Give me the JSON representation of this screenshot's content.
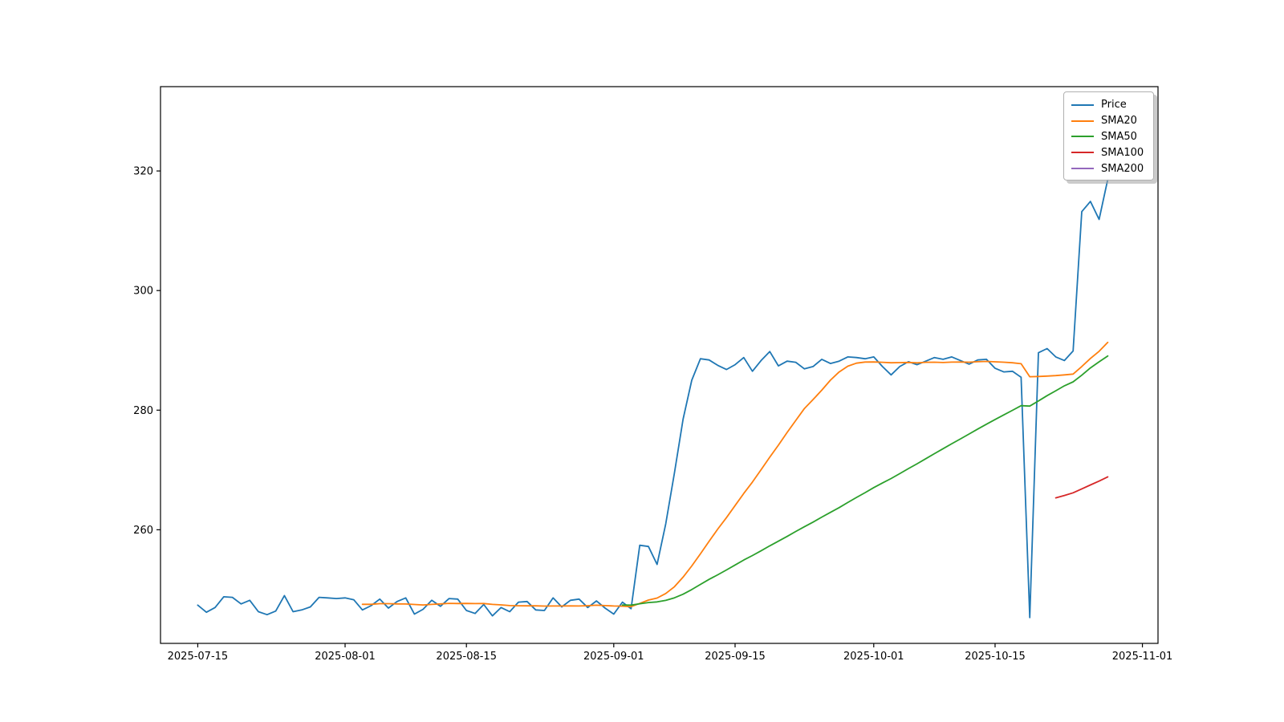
{
  "chart_data": {
    "type": "line",
    "title": "",
    "background_color": "#ffffff",
    "axis_color": "#000000",
    "tick_label_color": "#000000",
    "grid": false,
    "frequency": "daily",
    "start_date": "2025-07-15",
    "end_date": "2025-10-28",
    "x_tick_labels": [
      "2025-07-15",
      "2025-08-01",
      "2025-08-15",
      "2025-09-01",
      "2025-09-15",
      "2025-10-01",
      "2025-10-15",
      "2025-11-01"
    ],
    "y_tick_labels": [
      "260",
      "280",
      "300",
      "320"
    ],
    "y_ticks": [
      260,
      280,
      300,
      320
    ],
    "ylim": [
      241.0,
      334.1
    ],
    "xlim_days_from_start": [
      -4.3,
      110.8
    ],
    "legend": {
      "location": "upper right",
      "entries": [
        "Price",
        "SMA20",
        "SMA50",
        "SMA100",
        "SMA200"
      ]
    },
    "series": [
      {
        "name": "Price",
        "color": "#1f77b4",
        "kind": "price"
      },
      {
        "name": "SMA20",
        "color": "#ff7f0e",
        "kind": "sma",
        "window": 20
      },
      {
        "name": "SMA50",
        "color": "#2ca02c",
        "kind": "sma",
        "window": 50
      },
      {
        "name": "SMA100",
        "color": "#d62728",
        "kind": "sma",
        "window": 100
      },
      {
        "name": "SMA200",
        "color": "#9467bd",
        "kind": "sma",
        "window": 200
      }
    ],
    "price_values": [
      247.4,
      246.2,
      247.0,
      248.8,
      248.7,
      247.6,
      248.2,
      246.3,
      245.8,
      246.4,
      249.0,
      246.3,
      246.6,
      247.1,
      248.7,
      248.6,
      248.5,
      248.6,
      248.3,
      246.6,
      247.3,
      248.4,
      246.9,
      248.0,
      248.6,
      245.9,
      246.7,
      248.2,
      247.2,
      248.5,
      248.4,
      246.5,
      246.0,
      247.5,
      245.6,
      247.0,
      246.3,
      247.9,
      248.0,
      246.6,
      246.5,
      248.6,
      247.1,
      248.2,
      248.4,
      247.0,
      248.1,
      246.9,
      245.9,
      247.9,
      246.8,
      257.4,
      257.2,
      254.2,
      261.0,
      269.5,
      278.5,
      285.0,
      288.6,
      288.4,
      287.5,
      286.8,
      287.6,
      288.8,
      286.5,
      288.3,
      289.8,
      287.4,
      288.2,
      288.0,
      286.9,
      287.3,
      288.5,
      287.8,
      288.2,
      288.9,
      288.8,
      288.6,
      288.9,
      287.3,
      285.9,
      287.3,
      288.1,
      287.6,
      288.2,
      288.8,
      288.5,
      288.9,
      288.3,
      287.7,
      288.4,
      288.5,
      287.0,
      286.4,
      286.5,
      285.5,
      245.3,
      289.6,
      290.3,
      288.9,
      288.3,
      289.9,
      313.2,
      314.9,
      311.9,
      318.6
    ]
  }
}
